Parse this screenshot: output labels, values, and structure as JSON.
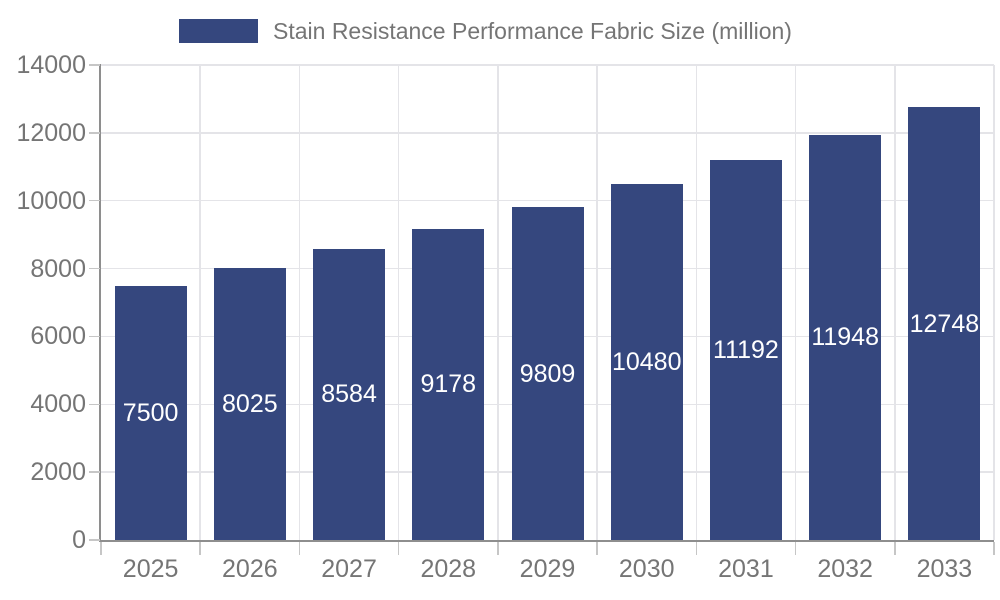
{
  "chart_data": {
    "type": "bar",
    "title": "Stain Resistance Performance Fabric Size (million)",
    "legend": [
      "Stain Resistance Performance Fabric Size (million)"
    ],
    "legend_position": "top",
    "categories": [
      "2025",
      "2026",
      "2027",
      "2028",
      "2029",
      "2030",
      "2031",
      "2032",
      "2033"
    ],
    "values": [
      7500,
      8025,
      8584,
      9178,
      9809,
      10480,
      11192,
      11948,
      12748
    ],
    "bar_value_labels": [
      "7500",
      "8025",
      "8584",
      "9178",
      "9809",
      "10480",
      "11192",
      "11948",
      "12748"
    ],
    "xlabel": "",
    "ylabel": "",
    "ylim": [
      0,
      14000
    ],
    "ytick_step": 2000,
    "ytick_labels": [
      "0",
      "2000",
      "4000",
      "6000",
      "8000",
      "10000",
      "12000",
      "14000"
    ],
    "grid": true,
    "colors": {
      "bar": "#35477e",
      "bar_label": "#ffffff",
      "axis_label": "#757575",
      "legend_text": "#757575",
      "grid_line": "#e4e4e8",
      "axis_line": "#8e8e8e",
      "tick": "#c6c6c6",
      "background": "#ffffff"
    }
  }
}
